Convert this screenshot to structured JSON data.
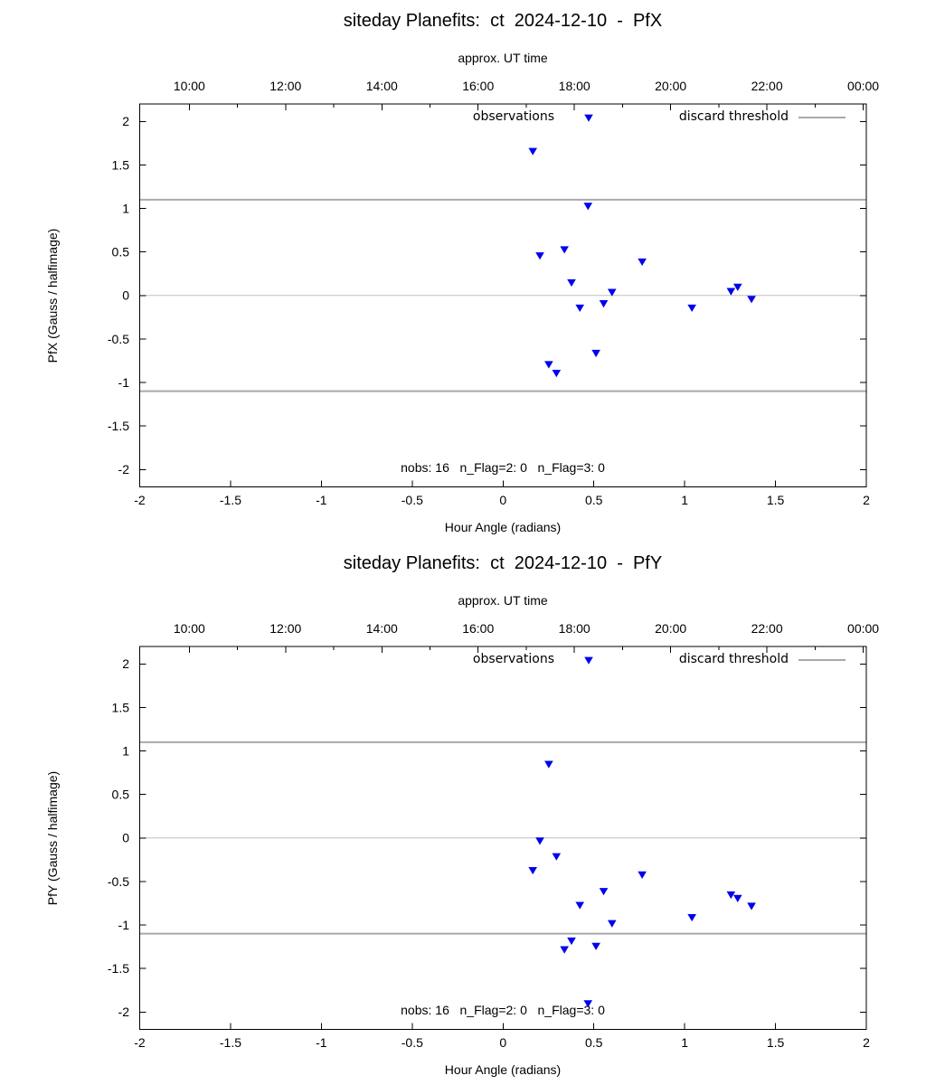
{
  "page": {
    "background": "#ffffff"
  },
  "colors": {
    "marker_blue": "#0000ee",
    "threshold_gray": "#a9a9a9",
    "zero_line_gray": "#c0c0c0",
    "border_black": "#000000"
  },
  "chart_data": [
    {
      "type": "scatter",
      "title": "siteday Planefits:  ct  2024-12-10  -  PfX",
      "x2label": "approx. UT time",
      "xlabel": "Hour Angle (radians)",
      "ylabel": "PfX (Gauss / halfimage)",
      "xlim": [
        -2,
        2
      ],
      "ylim": [
        -2.2,
        2.2
      ],
      "grid": "off",
      "legend_position": "top-inside",
      "legend": [
        {
          "label": "observations",
          "sample": "point"
        },
        {
          "label": "discard threshold",
          "sample": "line"
        }
      ],
      "annotation": "nobs: 16   n_Flag=2: 0   n_Flag=3: 0",
      "xticks": [
        {
          "v": -2,
          "label": "-2"
        },
        {
          "v": -1.5,
          "label": "-1.5"
        },
        {
          "v": -1,
          "label": "-1"
        },
        {
          "v": -0.5,
          "label": "-0.5"
        },
        {
          "v": 0,
          "label": "0"
        },
        {
          "v": 0.5,
          "label": "0.5"
        },
        {
          "v": 1,
          "label": "1"
        },
        {
          "v": 1.5,
          "label": "1.5"
        },
        {
          "v": 2,
          "label": "2"
        }
      ],
      "yticks": [
        {
          "v": 2,
          "label": "2"
        },
        {
          "v": 1.5,
          "label": "1.5"
        },
        {
          "v": 1,
          "label": "1"
        },
        {
          "v": 0.5,
          "label": "0.5"
        },
        {
          "v": 0,
          "label": "0"
        },
        {
          "v": -0.5,
          "label": "-0.5"
        },
        {
          "v": -1,
          "label": "-1"
        },
        {
          "v": -1.5,
          "label": "-1.5"
        },
        {
          "v": -2,
          "label": "-2"
        }
      ],
      "x2ticks": [
        {
          "v": -1.727,
          "label": "10:00"
        },
        {
          "v": -1.197,
          "label": "12:00"
        },
        {
          "v": -0.667,
          "label": "14:00"
        },
        {
          "v": -0.137,
          "label": "16:00"
        },
        {
          "v": 0.393,
          "label": "18:00"
        },
        {
          "v": 0.923,
          "label": "20:00"
        },
        {
          "v": 1.453,
          "label": "22:00"
        },
        {
          "v": 1.983,
          "label": "00:00"
        }
      ],
      "x2minor": [
        -1.462,
        -0.932,
        -0.402,
        0.128,
        0.658,
        1.188,
        1.718
      ],
      "zero_line": 0,
      "thresholds": [
        1.1,
        -1.1
      ],
      "x": [
        0.164,
        0.203,
        0.252,
        0.294,
        0.338,
        0.377,
        0.423,
        0.468,
        0.512,
        0.554,
        0.6,
        0.766,
        1.04,
        1.255,
        1.292,
        1.368
      ],
      "y": [
        1.66,
        0.46,
        -0.79,
        -0.89,
        0.53,
        0.15,
        -0.14,
        1.03,
        -0.66,
        -0.09,
        0.04,
        0.39,
        -0.14,
        0.05,
        0.1,
        -0.04
      ]
    },
    {
      "type": "scatter",
      "title": "siteday Planefits:  ct  2024-12-10  -  PfY",
      "x2label": "approx. UT time",
      "xlabel": "Hour Angle (radians)",
      "ylabel": "PfY (Gauss / halfimage)",
      "xlim": [
        -2,
        2
      ],
      "ylim": [
        -2.2,
        2.2
      ],
      "grid": "off",
      "legend_position": "top-inside",
      "legend": [
        {
          "label": "observations",
          "sample": "point"
        },
        {
          "label": "discard threshold",
          "sample": "line"
        }
      ],
      "annotation": "nobs: 16   n_Flag=2: 0   n_Flag=3: 0",
      "xticks": [
        {
          "v": -2,
          "label": "-2"
        },
        {
          "v": -1.5,
          "label": "-1.5"
        },
        {
          "v": -1,
          "label": "-1"
        },
        {
          "v": -0.5,
          "label": "-0.5"
        },
        {
          "v": 0,
          "label": "0"
        },
        {
          "v": 0.5,
          "label": "0.5"
        },
        {
          "v": 1,
          "label": "1"
        },
        {
          "v": 1.5,
          "label": "1.5"
        },
        {
          "v": 2,
          "label": "2"
        }
      ],
      "yticks": [
        {
          "v": 2,
          "label": "2"
        },
        {
          "v": 1.5,
          "label": "1.5"
        },
        {
          "v": 1,
          "label": "1"
        },
        {
          "v": 0.5,
          "label": "0.5"
        },
        {
          "v": 0,
          "label": "0"
        },
        {
          "v": -0.5,
          "label": "-0.5"
        },
        {
          "v": -1,
          "label": "-1"
        },
        {
          "v": -1.5,
          "label": "-1.5"
        },
        {
          "v": -2,
          "label": "-2"
        }
      ],
      "x2ticks": [
        {
          "v": -1.727,
          "label": "10:00"
        },
        {
          "v": -1.197,
          "label": "12:00"
        },
        {
          "v": -0.667,
          "label": "14:00"
        },
        {
          "v": -0.137,
          "label": "16:00"
        },
        {
          "v": 0.393,
          "label": "18:00"
        },
        {
          "v": 0.923,
          "label": "20:00"
        },
        {
          "v": 1.453,
          "label": "22:00"
        },
        {
          "v": 1.983,
          "label": "00:00"
        }
      ],
      "x2minor": [
        -1.462,
        -0.932,
        -0.402,
        0.128,
        0.658,
        1.188,
        1.718
      ],
      "zero_line": 0,
      "thresholds": [
        1.1,
        -1.1
      ],
      "x": [
        0.164,
        0.203,
        0.252,
        0.294,
        0.338,
        0.377,
        0.423,
        0.468,
        0.512,
        0.554,
        0.6,
        0.766,
        1.04,
        1.255,
        1.292,
        1.368
      ],
      "y": [
        -0.37,
        -0.03,
        0.85,
        -0.21,
        -1.28,
        -1.18,
        -0.77,
        -1.9,
        -1.24,
        -0.61,
        -0.98,
        -0.42,
        -0.91,
        -0.65,
        -0.69,
        -0.78
      ]
    }
  ]
}
